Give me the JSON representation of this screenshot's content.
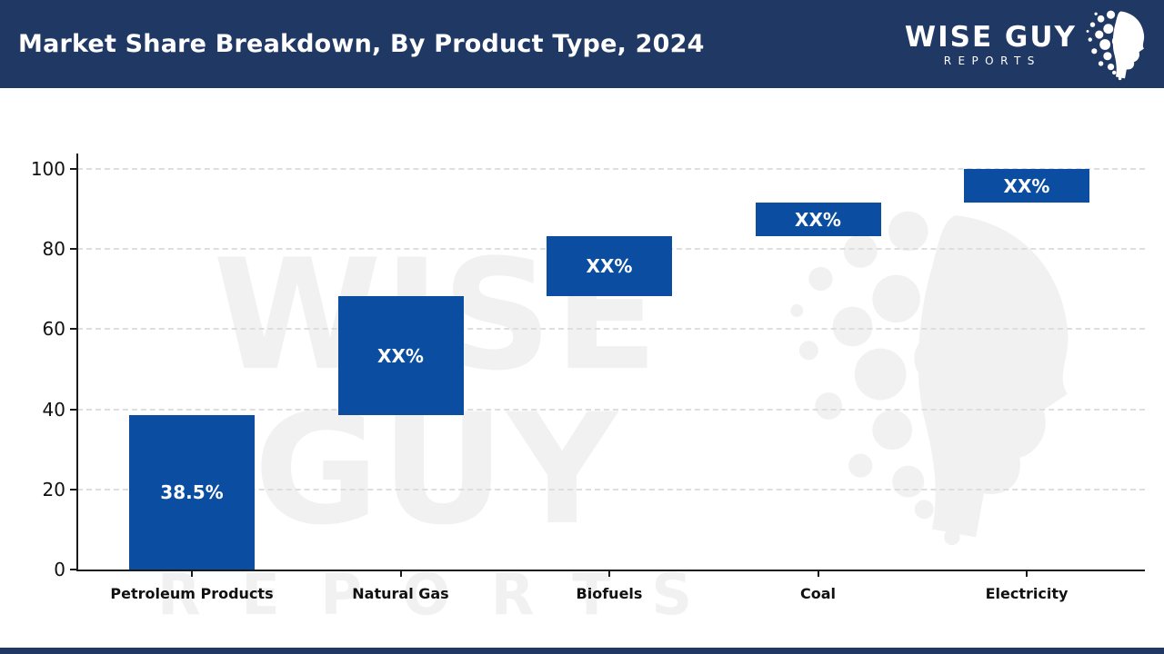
{
  "header": {
    "title": "Market Share Breakdown, By Product Type, 2024",
    "logo": {
      "line1": "WISE GUY",
      "line2": "REPORTS"
    }
  },
  "watermark": {
    "line1": "WISE GUY",
    "line2": "REPORTS"
  },
  "chart_data": {
    "type": "bar",
    "subtype": "waterfall",
    "title": "Market Share Breakdown, By Product Type, 2024",
    "categories": [
      "Petroleum Products",
      "Natural Gas",
      "Biofuels",
      "Coal",
      "Electricity"
    ],
    "series": [
      {
        "name": "Market Share",
        "starts": [
          0,
          38.5,
          68.3,
          83.2,
          91.5
        ],
        "ends": [
          38.5,
          68.3,
          83.2,
          91.5,
          100
        ],
        "labels": [
          "38.5%",
          "XX%",
          "XX%",
          "XX%",
          "XX%"
        ]
      }
    ],
    "yticks": [
      0,
      20,
      40,
      60,
      80,
      100
    ],
    "ylim": [
      0,
      104
    ],
    "xlabel": "",
    "ylabel": "",
    "grid": "horizontal-dashed",
    "legend": "none",
    "bar_color": "#0b4da1",
    "bar_label_color": "#ffffff"
  },
  "colors": {
    "header_bg": "#203864",
    "footer_bg": "#203864",
    "axis": "#1a1a1a",
    "gridline": "#dedede",
    "watermark": "#f1f1f1"
  }
}
